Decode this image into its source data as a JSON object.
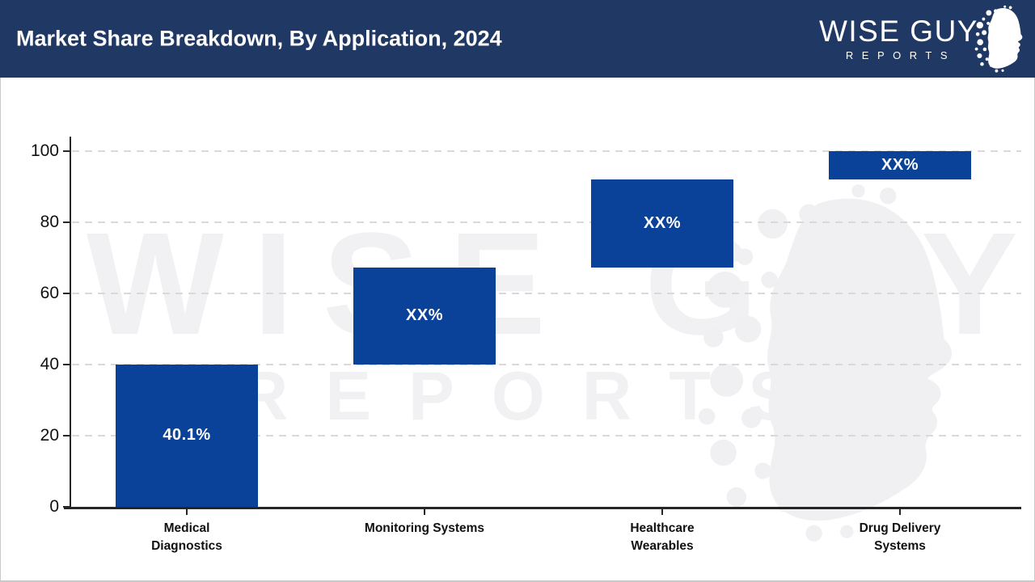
{
  "header": {
    "title": "Market Share Breakdown, By Application, 2024",
    "logo": {
      "line1": "WISE GUY",
      "line2": "REPORTS"
    }
  },
  "watermark": {
    "line1": "WISE GUY",
    "line2": "REPORTS"
  },
  "chart_data": {
    "type": "bar",
    "subtype": "waterfall",
    "title": "Market Share Breakdown, By Application, 2024",
    "xlabel": "",
    "ylabel": "",
    "categories": [
      "Medical\nDiagnostics",
      "Monitoring Systems",
      "Healthcare\nWearables",
      "Drug Delivery\nSystems"
    ],
    "segments": [
      {
        "category": "Medical Diagnostics",
        "start": 0,
        "end": 40.1,
        "label": "40.1%"
      },
      {
        "category": "Monitoring Systems",
        "start": 40.1,
        "end": 67.2,
        "label": "XX%"
      },
      {
        "category": "Healthcare Wearables",
        "start": 67.2,
        "end": 92.1,
        "label": "XX%"
      },
      {
        "category": "Drug Delivery Systems",
        "start": 92.1,
        "end": 100,
        "label": "XX%"
      }
    ],
    "yticks": [
      0,
      20,
      40,
      60,
      80,
      100
    ],
    "ylim": [
      0,
      104
    ],
    "grid": "horizontal-dashed",
    "legend": "none",
    "bar_color": "#0a4299",
    "bar_label_color": "#ffffff"
  }
}
